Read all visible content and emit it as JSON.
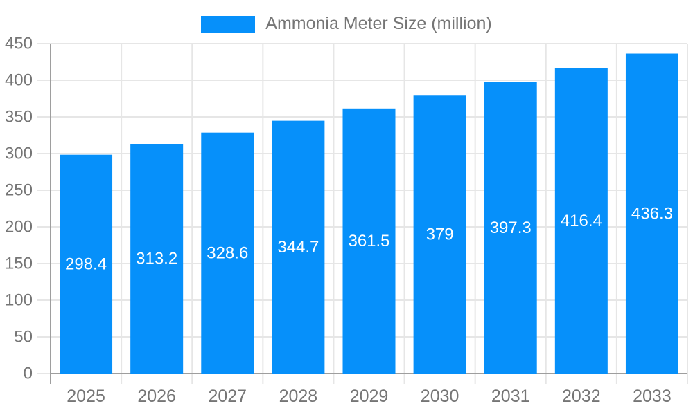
{
  "chart_data": {
    "type": "bar",
    "title": "Ammonia Meter Size (million)",
    "categories": [
      "2025",
      "2026",
      "2027",
      "2028",
      "2029",
      "2030",
      "2031",
      "2032",
      "2033"
    ],
    "series": [
      {
        "name": "Ammonia Meter Size (million)",
        "values": [
          298.4,
          313.2,
          328.6,
          344.7,
          361.5,
          379,
          397.3,
          416.4,
          436.3
        ],
        "value_labels": [
          "298.4",
          "313.2",
          "328.6",
          "344.7",
          "361.5",
          "379",
          "397.3",
          "416.4",
          "436.3"
        ]
      }
    ],
    "xlabel": "",
    "ylabel": "",
    "ylim": [
      0,
      450
    ],
    "ytick_interval": 50,
    "grid": true,
    "legend_position": "top",
    "colors": {
      "bar": "#0690fa",
      "value_label": "#ffffff",
      "axis_text": "#757575",
      "grid_line": "#e6e6e6",
      "axis_line": "#9e9e9e",
      "background": "#ffffff"
    }
  }
}
